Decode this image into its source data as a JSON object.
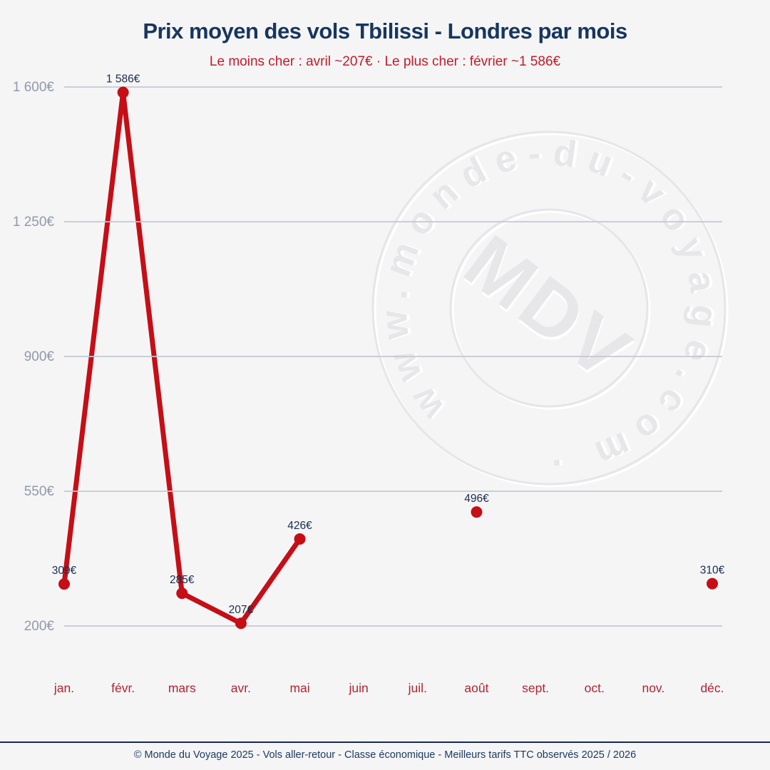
{
  "title": "Prix moyen des vols Tbilissi - Londres par mois",
  "subtitle": "Le moins cher : avril ~207€ · Le plus cher : février ~1 586€",
  "watermark": {
    "ring_text": "www.monde-du-voyage.com ·",
    "center_text": "MDV"
  },
  "footer": {
    "text": "© Monde du Voyage 2025 - Vols aller-retour - Classe économique - Meilleurs tarifs TTC observés 2025 / 2026"
  },
  "colors": {
    "background": "#f5f5f6",
    "title_navy": "#17365f",
    "subtitle_red": "#c41a28",
    "line_red": "#c50e16",
    "point_red": "#c50e16",
    "value_label_navy": "#1a2b4d",
    "month_label_red": "#b22431",
    "y_tick_gray": "#9199aa",
    "gridline_gray": "#c3c8d2",
    "footer_navy": "#1c3a60",
    "watermark_gray": "#e8e8eb"
  },
  "chart_data": {
    "type": "line",
    "title": "Prix moyen des vols Tbilissi - Londres par mois",
    "xlabel": "",
    "ylabel": "",
    "categories": [
      "jan.",
      "févr.",
      "mars",
      "avr.",
      "mai",
      "juin",
      "juil.",
      "août",
      "sept.",
      "oct.",
      "nov.",
      "déc."
    ],
    "values": [
      309,
      1586,
      285,
      207,
      426,
      null,
      null,
      496,
      null,
      null,
      null,
      310
    ],
    "point_labels": [
      "309€",
      "1 586€",
      "285€",
      "207€",
      "426€",
      null,
      null,
      "496€",
      null,
      null,
      null,
      "310€"
    ],
    "connected_segment_end_index": 4,
    "isolated_point_indices": [
      7,
      11
    ],
    "y_ticks": [
      200,
      550,
      900,
      1250,
      1600
    ],
    "y_tick_labels": [
      "200€",
      "550€",
      "900€",
      "1 250€",
      "1 600€"
    ],
    "ylim": [
      200,
      1600
    ],
    "grid": "horizontal-only",
    "legend": "none"
  }
}
